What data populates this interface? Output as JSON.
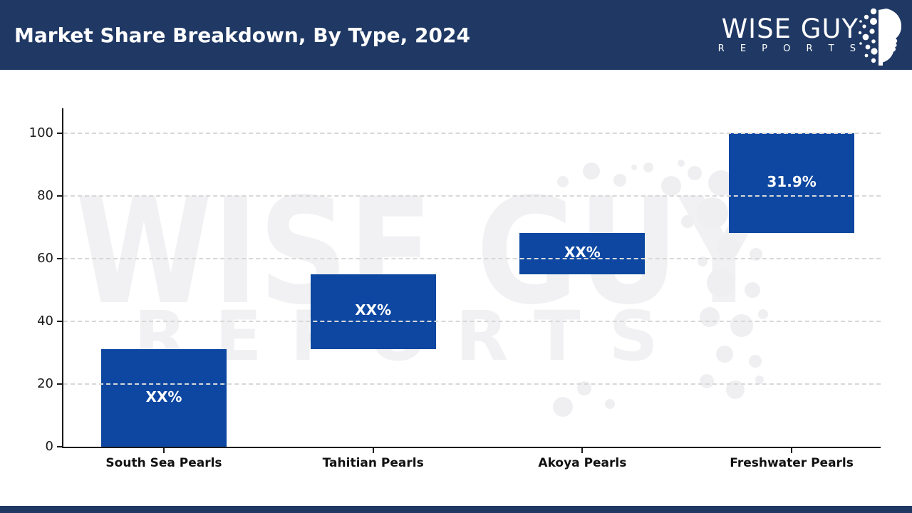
{
  "header": {
    "title": "Market Share Breakdown, By Type, 2024",
    "logo_line1": "WISE GUY",
    "logo_line2": "R E P O R T S"
  },
  "watermark": {
    "line1": "WISE GUY",
    "line2": "REPORTS"
  },
  "colors": {
    "header_bg": "#1f3864",
    "footer_bg": "#1f3864",
    "bar": "#0d47a1",
    "bar_label_text": "#ffffff",
    "grid": "#d8d8d8",
    "axis": "#1a1a1a",
    "watermark": "#f1f1f3"
  },
  "chart_data": {
    "type": "bar",
    "subtype": "waterfall",
    "title": "Market Share Breakdown, By Type, 2024",
    "categories": [
      "South Sea Pearls",
      "Tahitian Pearls",
      "Akoya Pearls",
      "Freshwater Pearls"
    ],
    "segments": [
      {
        "category": "South Sea Pearls",
        "start": 0,
        "end": 31.1,
        "value_label": "XX%"
      },
      {
        "category": "Tahitian Pearls",
        "start": 31.1,
        "end": 55.1,
        "value_label": "XX%"
      },
      {
        "category": "Akoya Pearls",
        "start": 55.1,
        "end": 68.1,
        "value_label": "XX%"
      },
      {
        "category": "Freshwater Pearls",
        "start": 68.1,
        "end": 100.0,
        "value_label": "31.9%"
      }
    ],
    "yticks": [
      0,
      20,
      40,
      60,
      80,
      100
    ],
    "ylim": [
      0,
      108
    ],
    "xlabel": "",
    "ylabel": "",
    "grid": "horizontal-dashed",
    "legend": "none"
  }
}
